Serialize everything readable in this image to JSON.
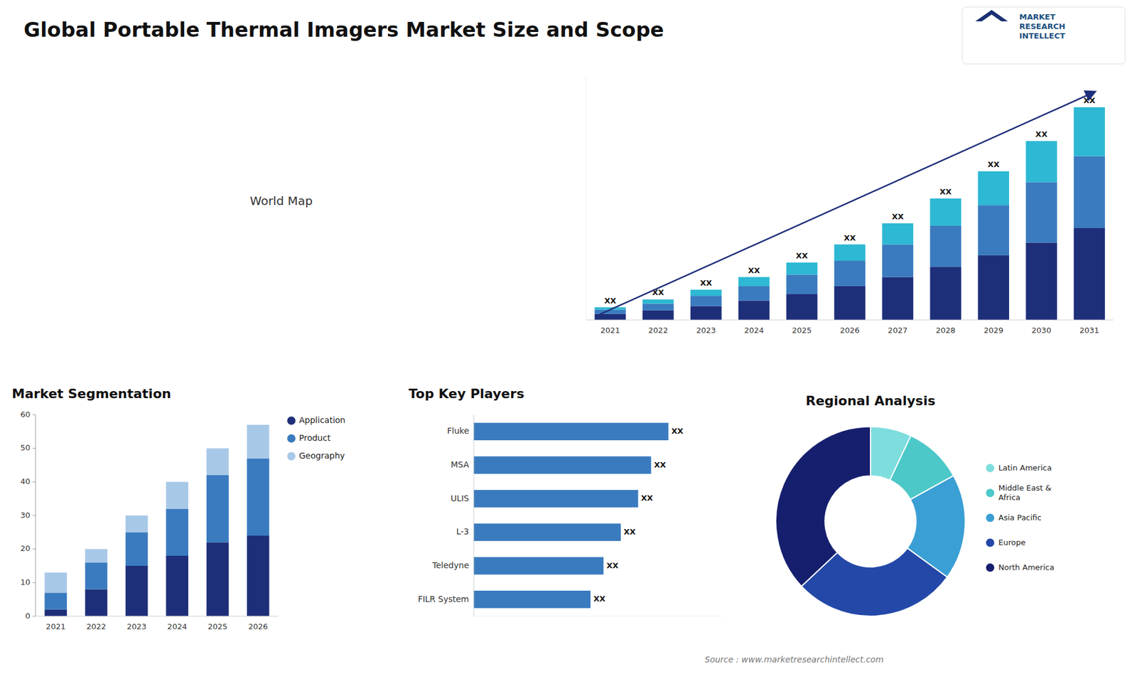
{
  "title": "Global Portable Thermal Imagers Market Size and Scope",
  "annotations": [
    "World Map",
    "MARKET",
    "RESEARCH",
    "INTELLECT",
    "Source : www.marketresearchintellect.com"
  ],
  "chart_data": [
    {
      "type": "bar",
      "stacked": true,
      "categories": [
        "2021",
        "2022",
        "2023",
        "2024",
        "2025",
        "2026",
        "2027",
        "2028",
        "2029",
        "2030",
        "2031"
      ],
      "series": [
        {
          "color": "#1e2f7a",
          "values": [
            1.0,
            1.6,
            2.3,
            3.2,
            4.3,
            5.6,
            7.1,
            8.8,
            10.7,
            12.8,
            15.2
          ]
        },
        {
          "color": "#3a7bbf",
          "values": [
            0.7,
            1.1,
            1.7,
            2.4,
            3.2,
            4.2,
            5.4,
            6.8,
            8.3,
            10.0,
            11.9
          ]
        },
        {
          "color": "#2db8d4",
          "values": [
            0.4,
            0.7,
            1.0,
            1.5,
            2.0,
            2.7,
            3.5,
            4.5,
            5.6,
            6.8,
            8.1
          ],
          "value_labels": [
            "XX",
            "XX",
            "XX",
            "XX",
            "XX",
            "XX",
            "XX",
            "XX",
            "XX",
            "XX",
            "XX"
          ]
        }
      ],
      "ylim": [
        0,
        40.2
      ],
      "tick_labels": "x",
      "grid": false
    },
    {
      "type": "bar",
      "stacked": true,
      "title": "Market Segmentation",
      "categories": [
        "2021",
        "2022",
        "2023",
        "2024",
        "2025",
        "2026"
      ],
      "series": [
        {
          "name": "Application",
          "color": "#1e2f7a",
          "values": [
            2,
            8,
            15,
            18,
            22,
            24
          ]
        },
        {
          "name": "Product",
          "color": "#3a7bbf",
          "values": [
            5,
            8,
            10,
            14,
            20,
            23
          ]
        },
        {
          "name": "Geography",
          "color": "#a8c8e8",
          "values": [
            6,
            4,
            5,
            8,
            8,
            10
          ]
        }
      ],
      "ylim": [
        0,
        60
      ],
      "yticks": [
        0,
        10,
        20,
        30,
        40,
        50,
        60
      ],
      "legend": "upper right",
      "grid": false
    },
    {
      "type": "bar",
      "orientation": "horizontal",
      "title": "Top Key Players",
      "categories": [
        "Fluke",
        "MSA",
        "ULIS",
        "L-3",
        "Teledyne",
        "FILR System"
      ],
      "values": [
        0.9,
        0.82,
        0.76,
        0.68,
        0.6,
        0.54
      ],
      "value_labels": [
        "XX",
        "XX",
        "XX",
        "XX",
        "XX",
        "XX"
      ],
      "color": "#3a7bbf",
      "xlim": [
        0,
        1.15
      ],
      "tick_labels": "y",
      "grid": false
    },
    {
      "type": "pie",
      "title": "Regional Analysis",
      "categories": [
        "Latin America",
        "Middle East &\nAfrica",
        "Asia Pacific",
        "Europe",
        "North America"
      ],
      "values": [
        7,
        10,
        18,
        28,
        37
      ],
      "colors": [
        "#7edddd",
        "#4cc8c8",
        "#3a9fd4",
        "#2348a8",
        "#161f6e"
      ],
      "legend": "right"
    }
  ]
}
